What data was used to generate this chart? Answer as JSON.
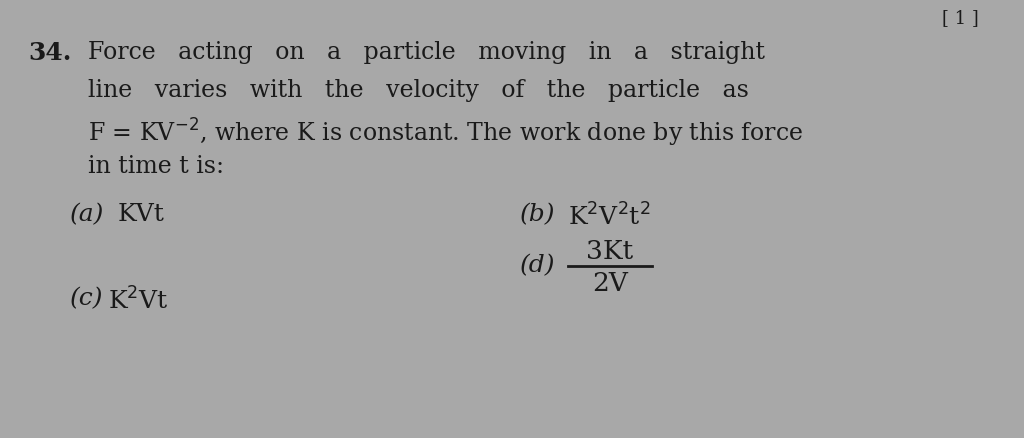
{
  "bg_color": "#a8a8a8",
  "text_color": "#1a1a1a",
  "header": "[ 1 ]",
  "q_num": "34.",
  "line1": "Force   acting   on   a   particle   moving   in   a   straight",
  "line2": "line   varies   with   the   velocity   of   the   particle   as",
  "line4": "in time t is:",
  "opt_a_lbl": "(a)",
  "opt_a": "KVt",
  "opt_b_lbl": "(b)",
  "opt_c_lbl": "(c)",
  "opt_d_lbl": "(d)",
  "frac_num": "3Kt",
  "frac_den": "2V",
  "fs_main": 17,
  "fs_opt": 18,
  "fs_header": 13
}
